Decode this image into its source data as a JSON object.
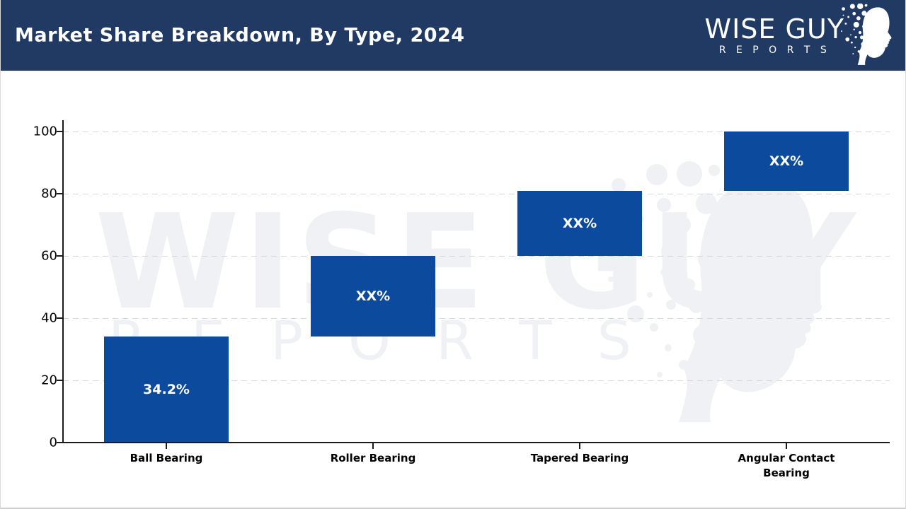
{
  "header": {
    "title": "Market Share Breakdown, By Type, 2024",
    "logo": {
      "name": "WISE GUY",
      "subname": "R E P O R T S"
    }
  },
  "watermark": {
    "line1": "WISE GUY",
    "line2": "R E P O R T S"
  },
  "chart_data": {
    "type": "bar",
    "subtype": "floating-segment-waterfall",
    "title": "Market Share Breakdown, By Type, 2024",
    "categories": [
      "Ball Bearing",
      "Roller Bearing",
      "Tapered Bearing",
      "Angular Contact Bearing"
    ],
    "segments": [
      {
        "category": "Ball Bearing",
        "start": 0,
        "end": 34.2,
        "label": "34.2%"
      },
      {
        "category": "Roller Bearing",
        "start": 34.2,
        "end": 60,
        "label": "XX%"
      },
      {
        "category": "Tapered Bearing",
        "start": 60,
        "end": 81,
        "label": "XX%"
      },
      {
        "category": "Angular Contact Bearing",
        "start": 81,
        "end": 100,
        "label": "XX%"
      }
    ],
    "ylim": [
      0,
      100
    ],
    "yticks": [
      0,
      20,
      40,
      60,
      80,
      100
    ],
    "grid": "horizontal-dashed",
    "legend": "none",
    "bar_color": "#0c4a9e",
    "label_color": "#ffffff"
  },
  "colors": {
    "header_bg": "#213a64",
    "bar": "#0c4a9e",
    "gridline": "#d7d7d7",
    "axis": "#1a1a1a",
    "watermark": "#f0f1f4",
    "background": "#ffffff"
  }
}
